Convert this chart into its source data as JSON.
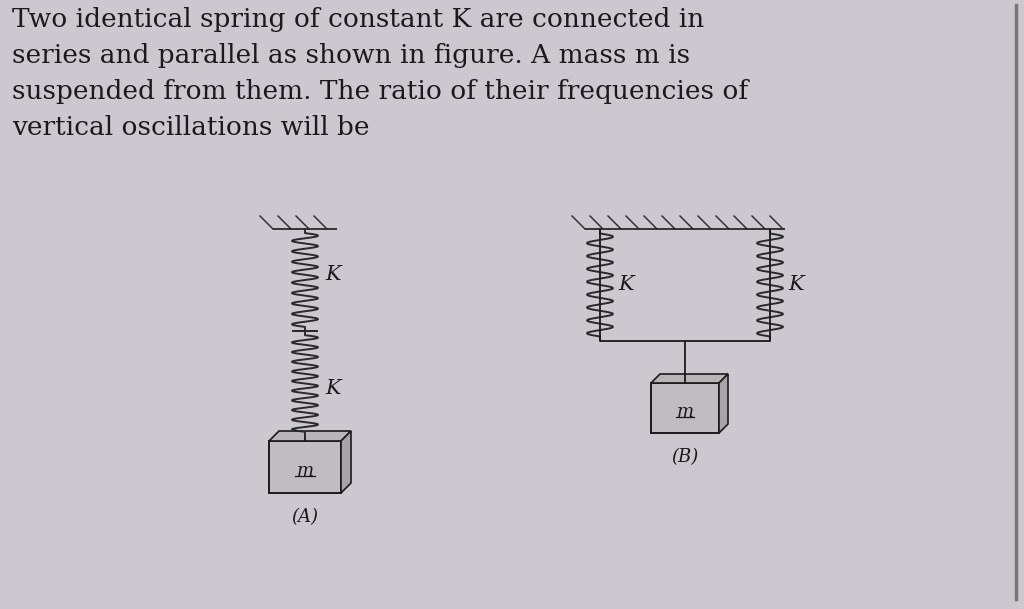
{
  "background_color": "#cdc8d0",
  "text_color": "#1a1a1a",
  "title_text": "Two identical spring of constant K are connected in\nseries and parallel as shown in figure. A mass m is\nsuspended from them. The ratio of their frequencies of\nvertical oscillations will be",
  "title_fontsize": 19,
  "fig_width": 10.24,
  "fig_height": 6.09,
  "spring_color": "#2a2a2a",
  "box_color": "#c0bcbf",
  "box_edge_color": "#1a1a1a",
  "label_A": "(A)",
  "label_B": "(B)",
  "label_K": "K",
  "label_m": "m",
  "border_color": "#777777"
}
